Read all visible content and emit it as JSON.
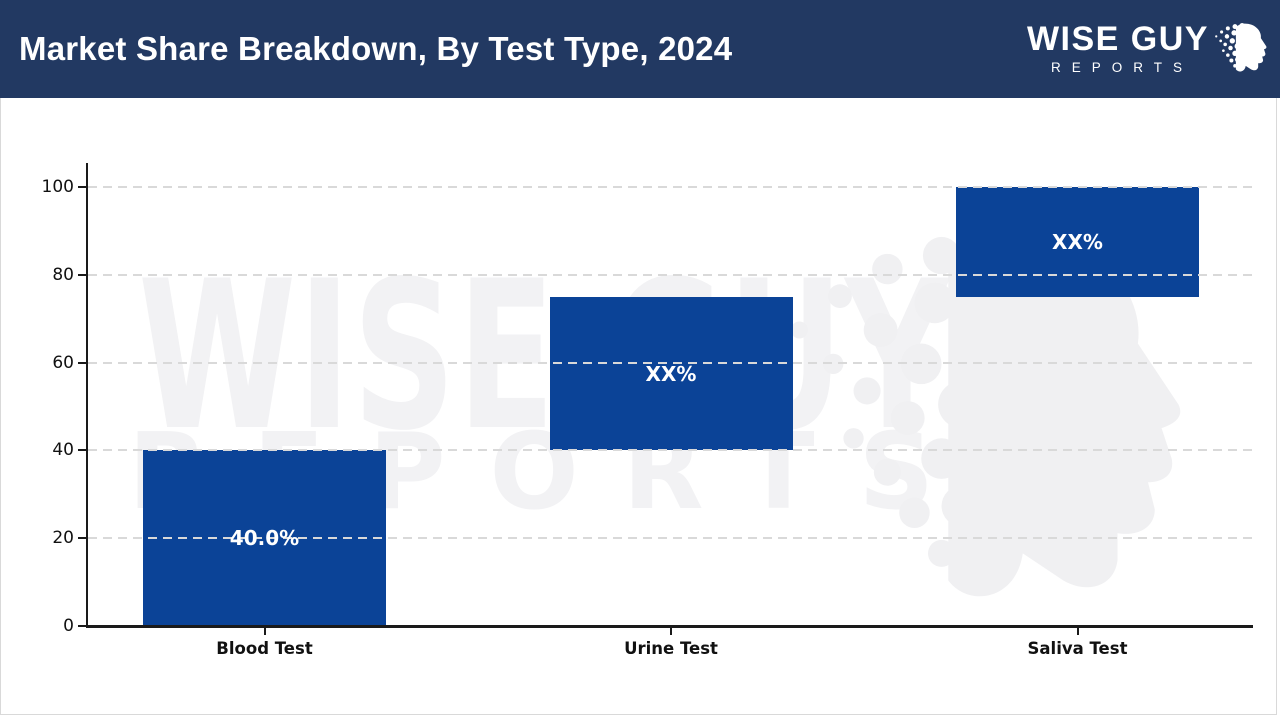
{
  "header": {
    "title": "Market Share Breakdown, By Test Type, 2024",
    "logo": {
      "line1": "WISE GUY",
      "line2": "REPORTS"
    }
  },
  "watermark": {
    "line1": "WISE GUY",
    "line2": "REPORTS"
  },
  "chart_data": {
    "type": "bar",
    "subtype": "waterfall-breakdown",
    "title": "Market Share Breakdown, By Test Type, 2024",
    "categories": [
      "Blood Test",
      "Urine Test",
      "Saliva Test"
    ],
    "bars": [
      {
        "category": "Blood Test",
        "start": 0,
        "end": 40,
        "label": "40.0%"
      },
      {
        "category": "Urine Test",
        "start": 40,
        "end": 75,
        "label": "XX%"
      },
      {
        "category": "Saliva Test",
        "start": 75,
        "end": 100,
        "label": "XX%"
      }
    ],
    "ylim": [
      0,
      100
    ],
    "yticks": [
      0,
      20,
      40,
      60,
      80,
      100
    ],
    "grid": {
      "axis": "y",
      "style": "dashed",
      "color": "#d9d9d9",
      "on_top_of_bars": true
    },
    "bar_color": "#0b4397",
    "bar_label_color": "#ffffff",
    "xlabel": "",
    "ylabel": ""
  },
  "colors": {
    "header_bg": "#223962",
    "bar": "#0b4397",
    "axis": "#1a1a1a",
    "grid": "#d9d9d9",
    "watermark": "#f2f2f4"
  }
}
